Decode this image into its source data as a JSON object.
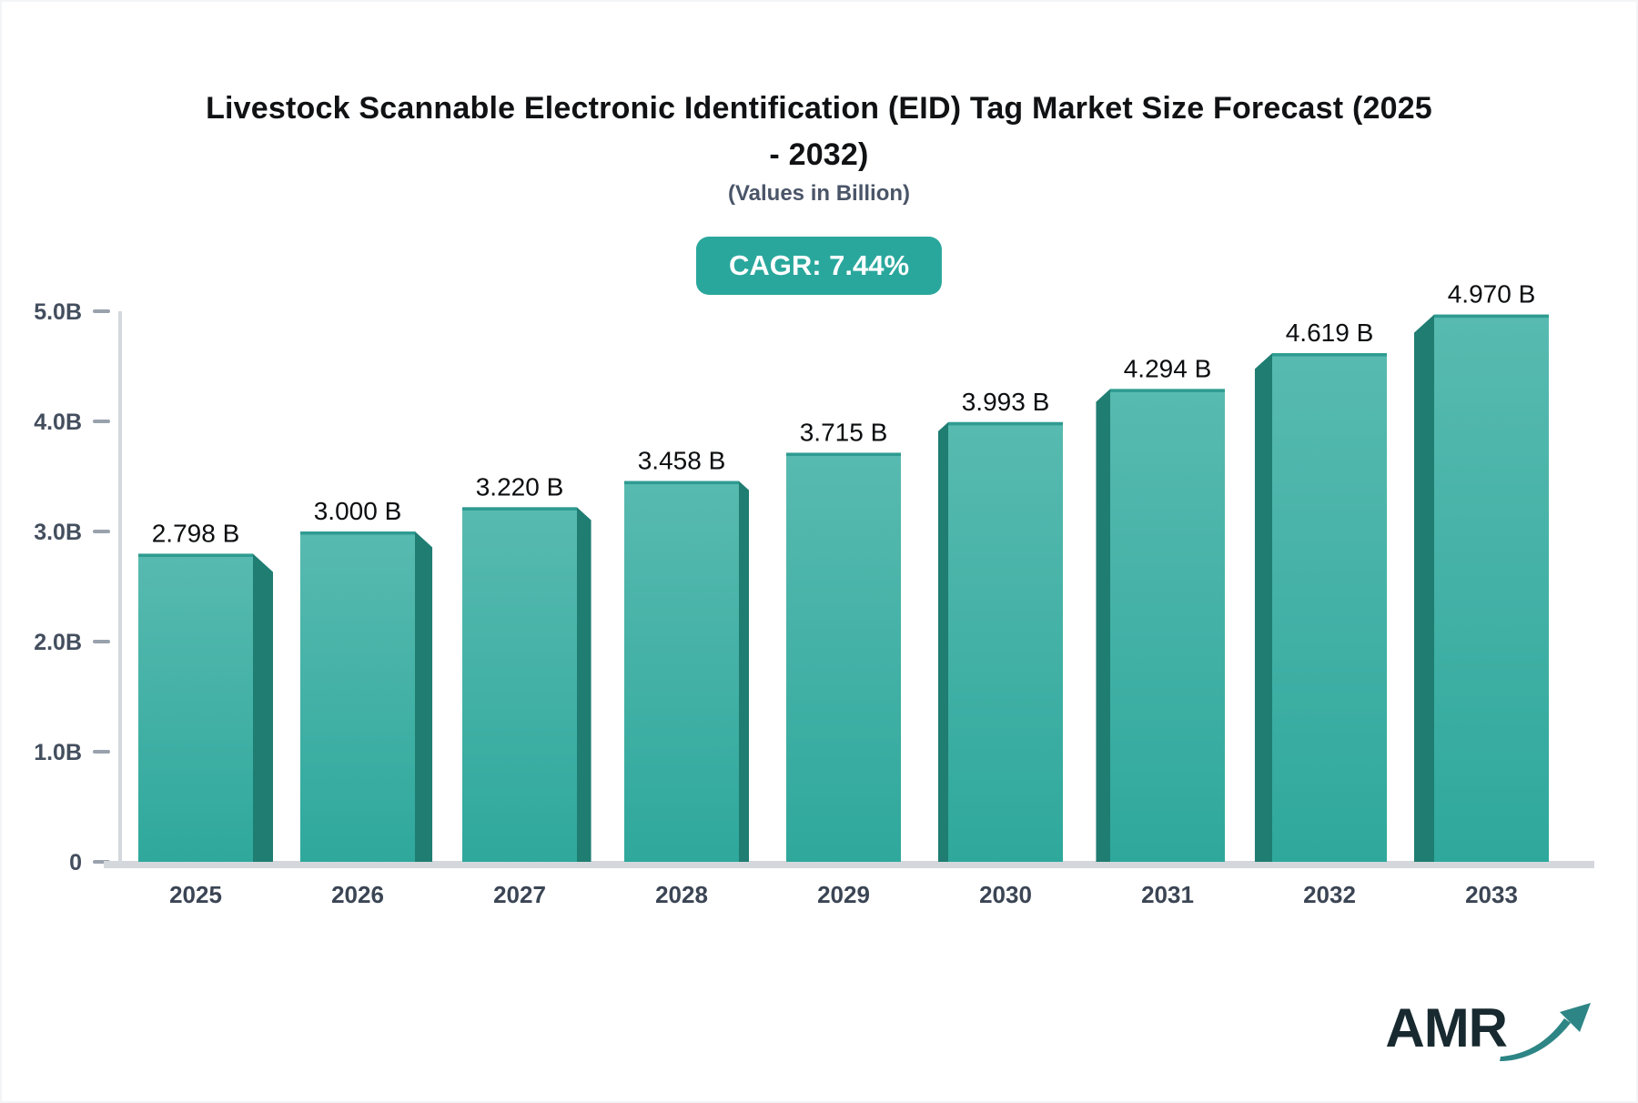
{
  "header": {
    "title_line1": "Livestock Scannable Electronic Identification (EID) Tag Market Size Forecast (2025",
    "title_line2": "- 2032)",
    "subtitle": "(Values in Billion)",
    "cagr_label": "CAGR: 7.44%",
    "badge_color": "#2aa79d",
    "title_color": "#101214",
    "subtitle_color": "#4a5568"
  },
  "chart_data": {
    "type": "bar",
    "title": "Livestock Scannable Electronic Identification (EID) Tag Market Size Forecast (2025 - 2032)",
    "subtitle": "(Values in Billion)",
    "cagr": "7.44%",
    "categories": [
      "2025",
      "2026",
      "2027",
      "2028",
      "2029",
      "2030",
      "2031",
      "2032",
      "2033"
    ],
    "values": [
      2.798,
      3.0,
      3.22,
      3.458,
      3.715,
      3.993,
      4.294,
      4.619,
      4.97
    ],
    "value_labels": [
      "2.798 B",
      "3.000 B",
      "3.220 B",
      "3.458 B",
      "3.715 B",
      "3.993 B",
      "4.294 B",
      "4.619 B",
      "4.970 B"
    ],
    "unit": "Billion",
    "ylim": [
      0,
      5
    ],
    "y_ticks": [
      {
        "value": 0,
        "label": "0"
      },
      {
        "value": 1,
        "label": "1.0B"
      },
      {
        "value": 2,
        "label": "2.0B"
      },
      {
        "value": 3,
        "label": "3.0B"
      },
      {
        "value": 4,
        "label": "4.0B"
      },
      {
        "value": 5,
        "label": "5.0B"
      }
    ],
    "grid": false,
    "legend": "none",
    "style": "3d-perspective-bars",
    "colors": {
      "bar_face_top": "#58bab0",
      "bar_face_bottom": "#2fa89c",
      "bar_top_edge": "#2f9b91",
      "bar_side_dark": "#1f7d72",
      "axis_line": "#d4d8dc",
      "tick_dash": "#99a2ac",
      "y_tick_label": "#434e5e",
      "category_label": "#3b4554",
      "value_label": "#0c0e10"
    }
  },
  "logo": {
    "text": "AMR",
    "text_color": "#182a30",
    "arrow_color": "#2e8585",
    "arrow_icon": "growth-arrow"
  }
}
